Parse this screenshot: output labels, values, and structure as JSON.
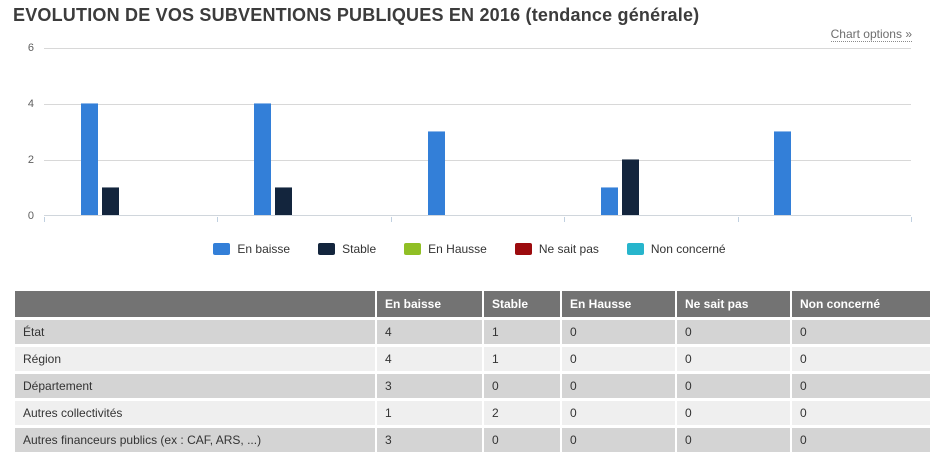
{
  "header": {
    "title": "EVOLUTION DE VOS SUBVENTIONS PUBLIQUES EN 2016 (tendance générale)",
    "chart_options_label": "Chart options »"
  },
  "chart_data": {
    "type": "bar",
    "title": "EVOLUTION DE VOS SUBVENTIONS PUBLIQUES EN 2016 (tendance générale)",
    "categories": [
      "État",
      "Région",
      "Département",
      "Autres collectivités",
      "Autres financeurs publics (ex : CAF, ARS, ...)"
    ],
    "series": [
      {
        "name": "En baisse",
        "color": "#337fd8",
        "values": [
          4,
          4,
          3,
          1,
          3
        ]
      },
      {
        "name": "Stable",
        "color": "#13253d",
        "values": [
          1,
          1,
          0,
          2,
          0
        ]
      },
      {
        "name": "En Hausse",
        "color": "#90bf25",
        "values": [
          0,
          0,
          0,
          0,
          0
        ]
      },
      {
        "name": "Ne sait pas",
        "color": "#9c0b0e",
        "values": [
          0,
          0,
          0,
          0,
          0
        ]
      },
      {
        "name": "Non concerné",
        "color": "#27b5cc",
        "values": [
          0,
          0,
          0,
          0,
          0
        ]
      }
    ],
    "xlabel": "",
    "ylabel": "",
    "ylim": [
      0,
      6
    ],
    "yticks": [
      0,
      2,
      4,
      6
    ],
    "grid": true,
    "legend_position": "bottom",
    "axis_colors": {
      "gridline": "#d8d8d8",
      "tick": "#c0d0e0",
      "label": "#5f5f5f"
    }
  },
  "table": {
    "columns": [
      "",
      "En baisse",
      "Stable",
      "En Hausse",
      "Ne sait pas",
      "Non concerné"
    ],
    "rows": [
      {
        "label": "État",
        "values": [
          4,
          1,
          0,
          0,
          0
        ]
      },
      {
        "label": "Région",
        "values": [
          4,
          1,
          0,
          0,
          0
        ]
      },
      {
        "label": "Département",
        "values": [
          3,
          0,
          0,
          0,
          0
        ]
      },
      {
        "label": "Autres collectivités",
        "values": [
          1,
          2,
          0,
          0,
          0
        ]
      },
      {
        "label": "Autres financeurs publics (ex : CAF, ARS, ...)",
        "values": [
          3,
          0,
          0,
          0,
          0
        ]
      }
    ]
  }
}
